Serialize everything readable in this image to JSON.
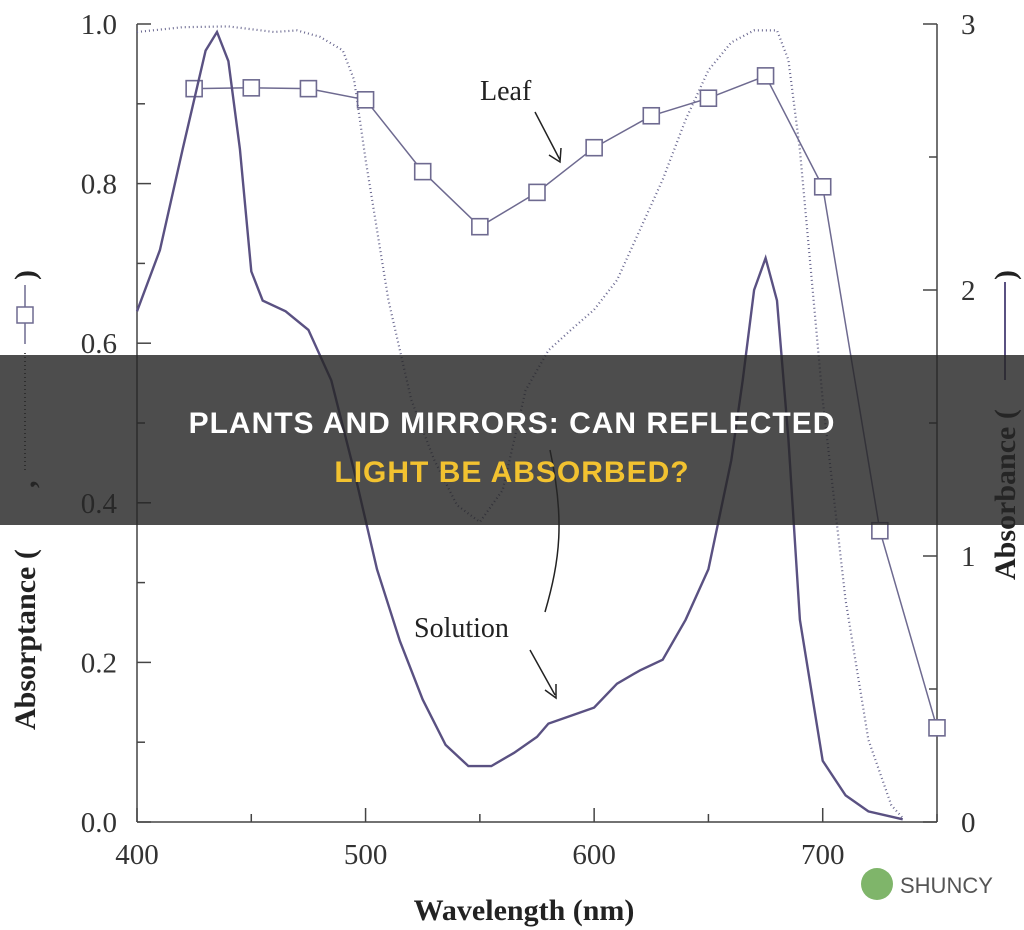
{
  "chart_data": {
    "type": "line",
    "xlabel": "Wavelength (nm)",
    "ylabel_parts": [
      "Absorptance (",
      ",",
      ")"
    ],
    "y2label_parts": [
      "Absorbance (",
      ")"
    ],
    "annotations": [
      "Leaf",
      "Solution"
    ],
    "xlim": [
      400,
      750
    ],
    "xticks": [
      400,
      500,
      600,
      700
    ],
    "xminor": [
      450,
      550,
      650,
      750
    ],
    "ylim": [
      0,
      1
    ],
    "yticks": [
      {
        "value": 0,
        "label": "0.0"
      },
      0.2,
      0.4,
      0.6,
      0.8,
      {
        "value": 1,
        "label": "1.0"
      }
    ],
    "yminor": [
      0.1,
      0.3,
      0.5,
      0.7,
      0.9
    ],
    "y2lim": [
      0,
      3
    ],
    "y2ticks": [
      0,
      1,
      2,
      3
    ],
    "y2minor": [
      0.5,
      1.5,
      2.5
    ],
    "series": [
      {
        "style": "markers",
        "color": "#6e6a90",
        "x": [
          425,
          450,
          475,
          500,
          525,
          550,
          575,
          600,
          625,
          650,
          675,
          700,
          725,
          750
        ],
        "values": [
          0.919,
          0.92,
          0.919,
          0.905,
          0.815,
          0.746,
          0.789,
          0.845,
          0.885,
          0.907,
          0.935,
          0.796,
          0.365,
          0.118
        ]
      },
      {
        "style": "dotted",
        "color": "#6a6890",
        "x": [
          400,
          420,
          440,
          460,
          470,
          480,
          490,
          495,
          500,
          510,
          520,
          530,
          540,
          550,
          560,
          570,
          580,
          590,
          600,
          610,
          620,
          630,
          640,
          650,
          660,
          670,
          680,
          685,
          690,
          700,
          710,
          720,
          730,
          735
        ],
        "values": [
          0.99,
          0.996,
          0.997,
          0.99,
          0.992,
          0.984,
          0.967,
          0.93,
          0.83,
          0.654,
          0.529,
          0.454,
          0.397,
          0.376,
          0.416,
          0.541,
          0.591,
          0.617,
          0.642,
          0.679,
          0.742,
          0.805,
          0.88,
          0.942,
          0.977,
          0.992,
          0.992,
          0.955,
          0.842,
          0.529,
          0.278,
          0.103,
          0.021,
          0.005
        ]
      },
      {
        "style": "solid",
        "color": "#5a5182",
        "axis": "y2",
        "x": [
          400,
          410,
          420,
          430,
          435,
          440,
          445,
          450,
          455,
          465,
          475,
          485,
          495,
          505,
          515,
          525,
          535,
          545,
          555,
          565,
          575,
          580,
          590,
          600,
          610,
          620,
          630,
          640,
          650,
          660,
          665,
          670,
          675,
          680,
          685,
          690,
          700,
          710,
          720,
          735
        ],
        "values": [
          1.92,
          2.15,
          2.53,
          2.9,
          2.97,
          2.86,
          2.53,
          2.07,
          1.96,
          1.92,
          1.85,
          1.66,
          1.32,
          0.95,
          0.68,
          0.46,
          0.29,
          0.21,
          0.21,
          0.26,
          0.32,
          0.37,
          0.4,
          0.43,
          0.52,
          0.57,
          0.61,
          0.76,
          0.95,
          1.36,
          1.66,
          2.0,
          2.12,
          1.96,
          1.44,
          0.76,
          0.23,
          0.1,
          0.04,
          0.01
        ]
      }
    ]
  },
  "banner": {
    "line1": "PLANTS AND MIRRORS: CAN REFLECTED",
    "line2": "LIGHT BE ABSORBED?"
  },
  "watermark": "SHUNCY"
}
